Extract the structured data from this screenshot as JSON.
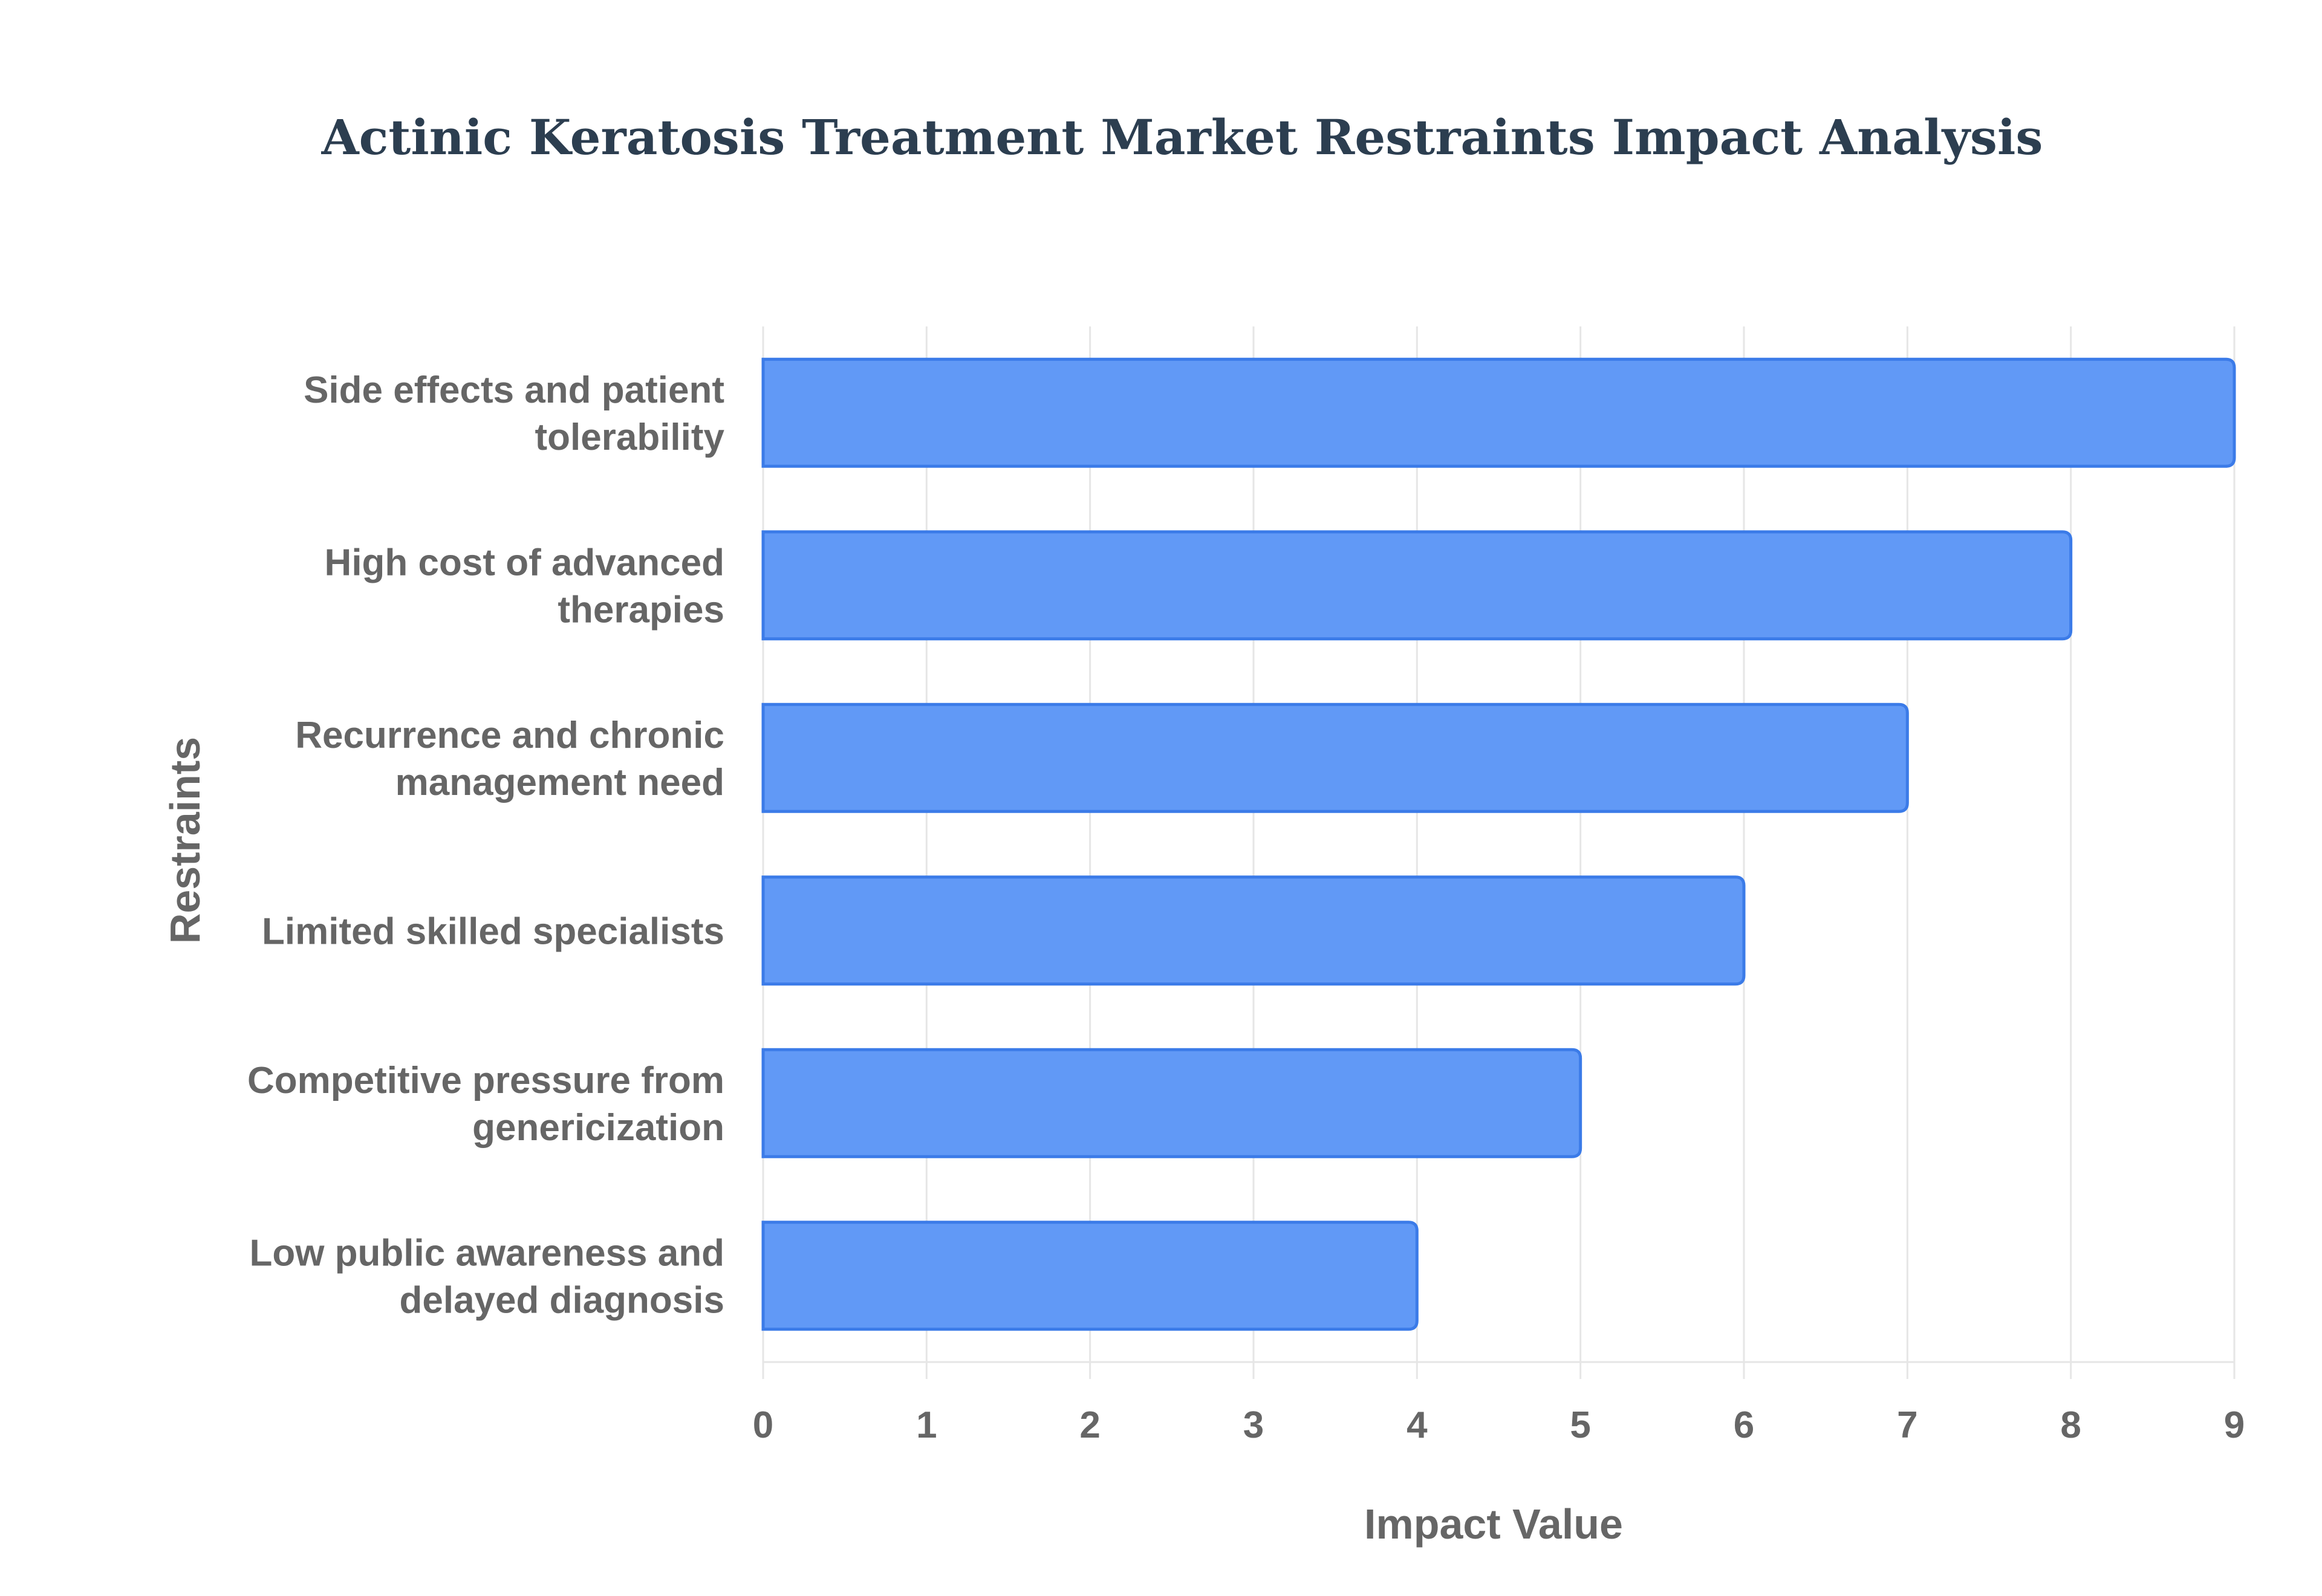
{
  "chart_data": {
    "type": "bar",
    "orientation": "horizontal",
    "title": "Actinic Keratosis Treatment Market Restraints Impact Analysis",
    "xlabel": "Impact Value",
    "ylabel": "Restraints",
    "categories": [
      [
        "Side effects and patient",
        "tolerability"
      ],
      [
        "High cost of advanced",
        "therapies"
      ],
      [
        "Recurrence and chronic",
        "management need"
      ],
      [
        "Limited skilled specialists"
      ],
      [
        "Competitive pressure from",
        "genericization"
      ],
      [
        "Low public awareness and",
        "delayed diagnosis"
      ]
    ],
    "values": [
      9,
      8,
      7,
      6,
      5,
      4
    ],
    "xlim": [
      0,
      9
    ],
    "xticks": [
      "0",
      "1",
      "2",
      "3",
      "4",
      "5",
      "6",
      "7",
      "8",
      "9"
    ],
    "grid": true,
    "legend": "none",
    "colors": {
      "bar_fill": "#6199f6",
      "bar_stroke": "#3b7be8",
      "grid": "#e6e6e6",
      "text": "#666666",
      "title": "#2c3e50"
    }
  }
}
